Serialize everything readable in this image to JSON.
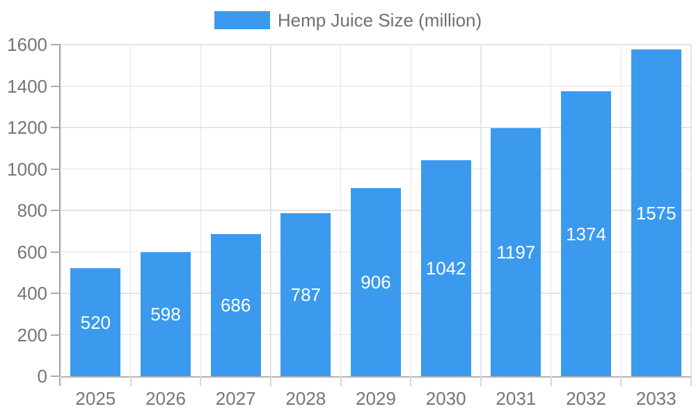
{
  "chart_data": {
    "type": "bar",
    "title": "",
    "legend": "Hemp Juice Size (million)",
    "legend_position": "top-center",
    "categories": [
      "2025",
      "2026",
      "2027",
      "2028",
      "2029",
      "2030",
      "2031",
      "2032",
      "2033"
    ],
    "series": [
      {
        "name": "Hemp Juice Size (million)",
        "values": [
          520,
          598,
          686,
          787,
          906,
          1042,
          1197,
          1374,
          1575
        ]
      }
    ],
    "xlabel": "",
    "ylabel": "",
    "ylim": [
      0,
      1600
    ],
    "yticks": [
      0,
      200,
      400,
      600,
      800,
      1000,
      1200,
      1400,
      1600
    ],
    "grid": "horizontal and vertical gridlines on",
    "value_labels": "white, centered inside bars",
    "colors": {
      "bar": "#3B9AEE",
      "grid": "#E4E4E4",
      "axis_y": "#9E9E9E",
      "axis_x": "#B3B3B3",
      "tick_y": "#ABABAB",
      "tick_x": "#D6D6D6",
      "label": "#757575",
      "legend_text": "#707070",
      "bar_label": "#FFFFFF",
      "background": "#FFFFFF"
    }
  }
}
